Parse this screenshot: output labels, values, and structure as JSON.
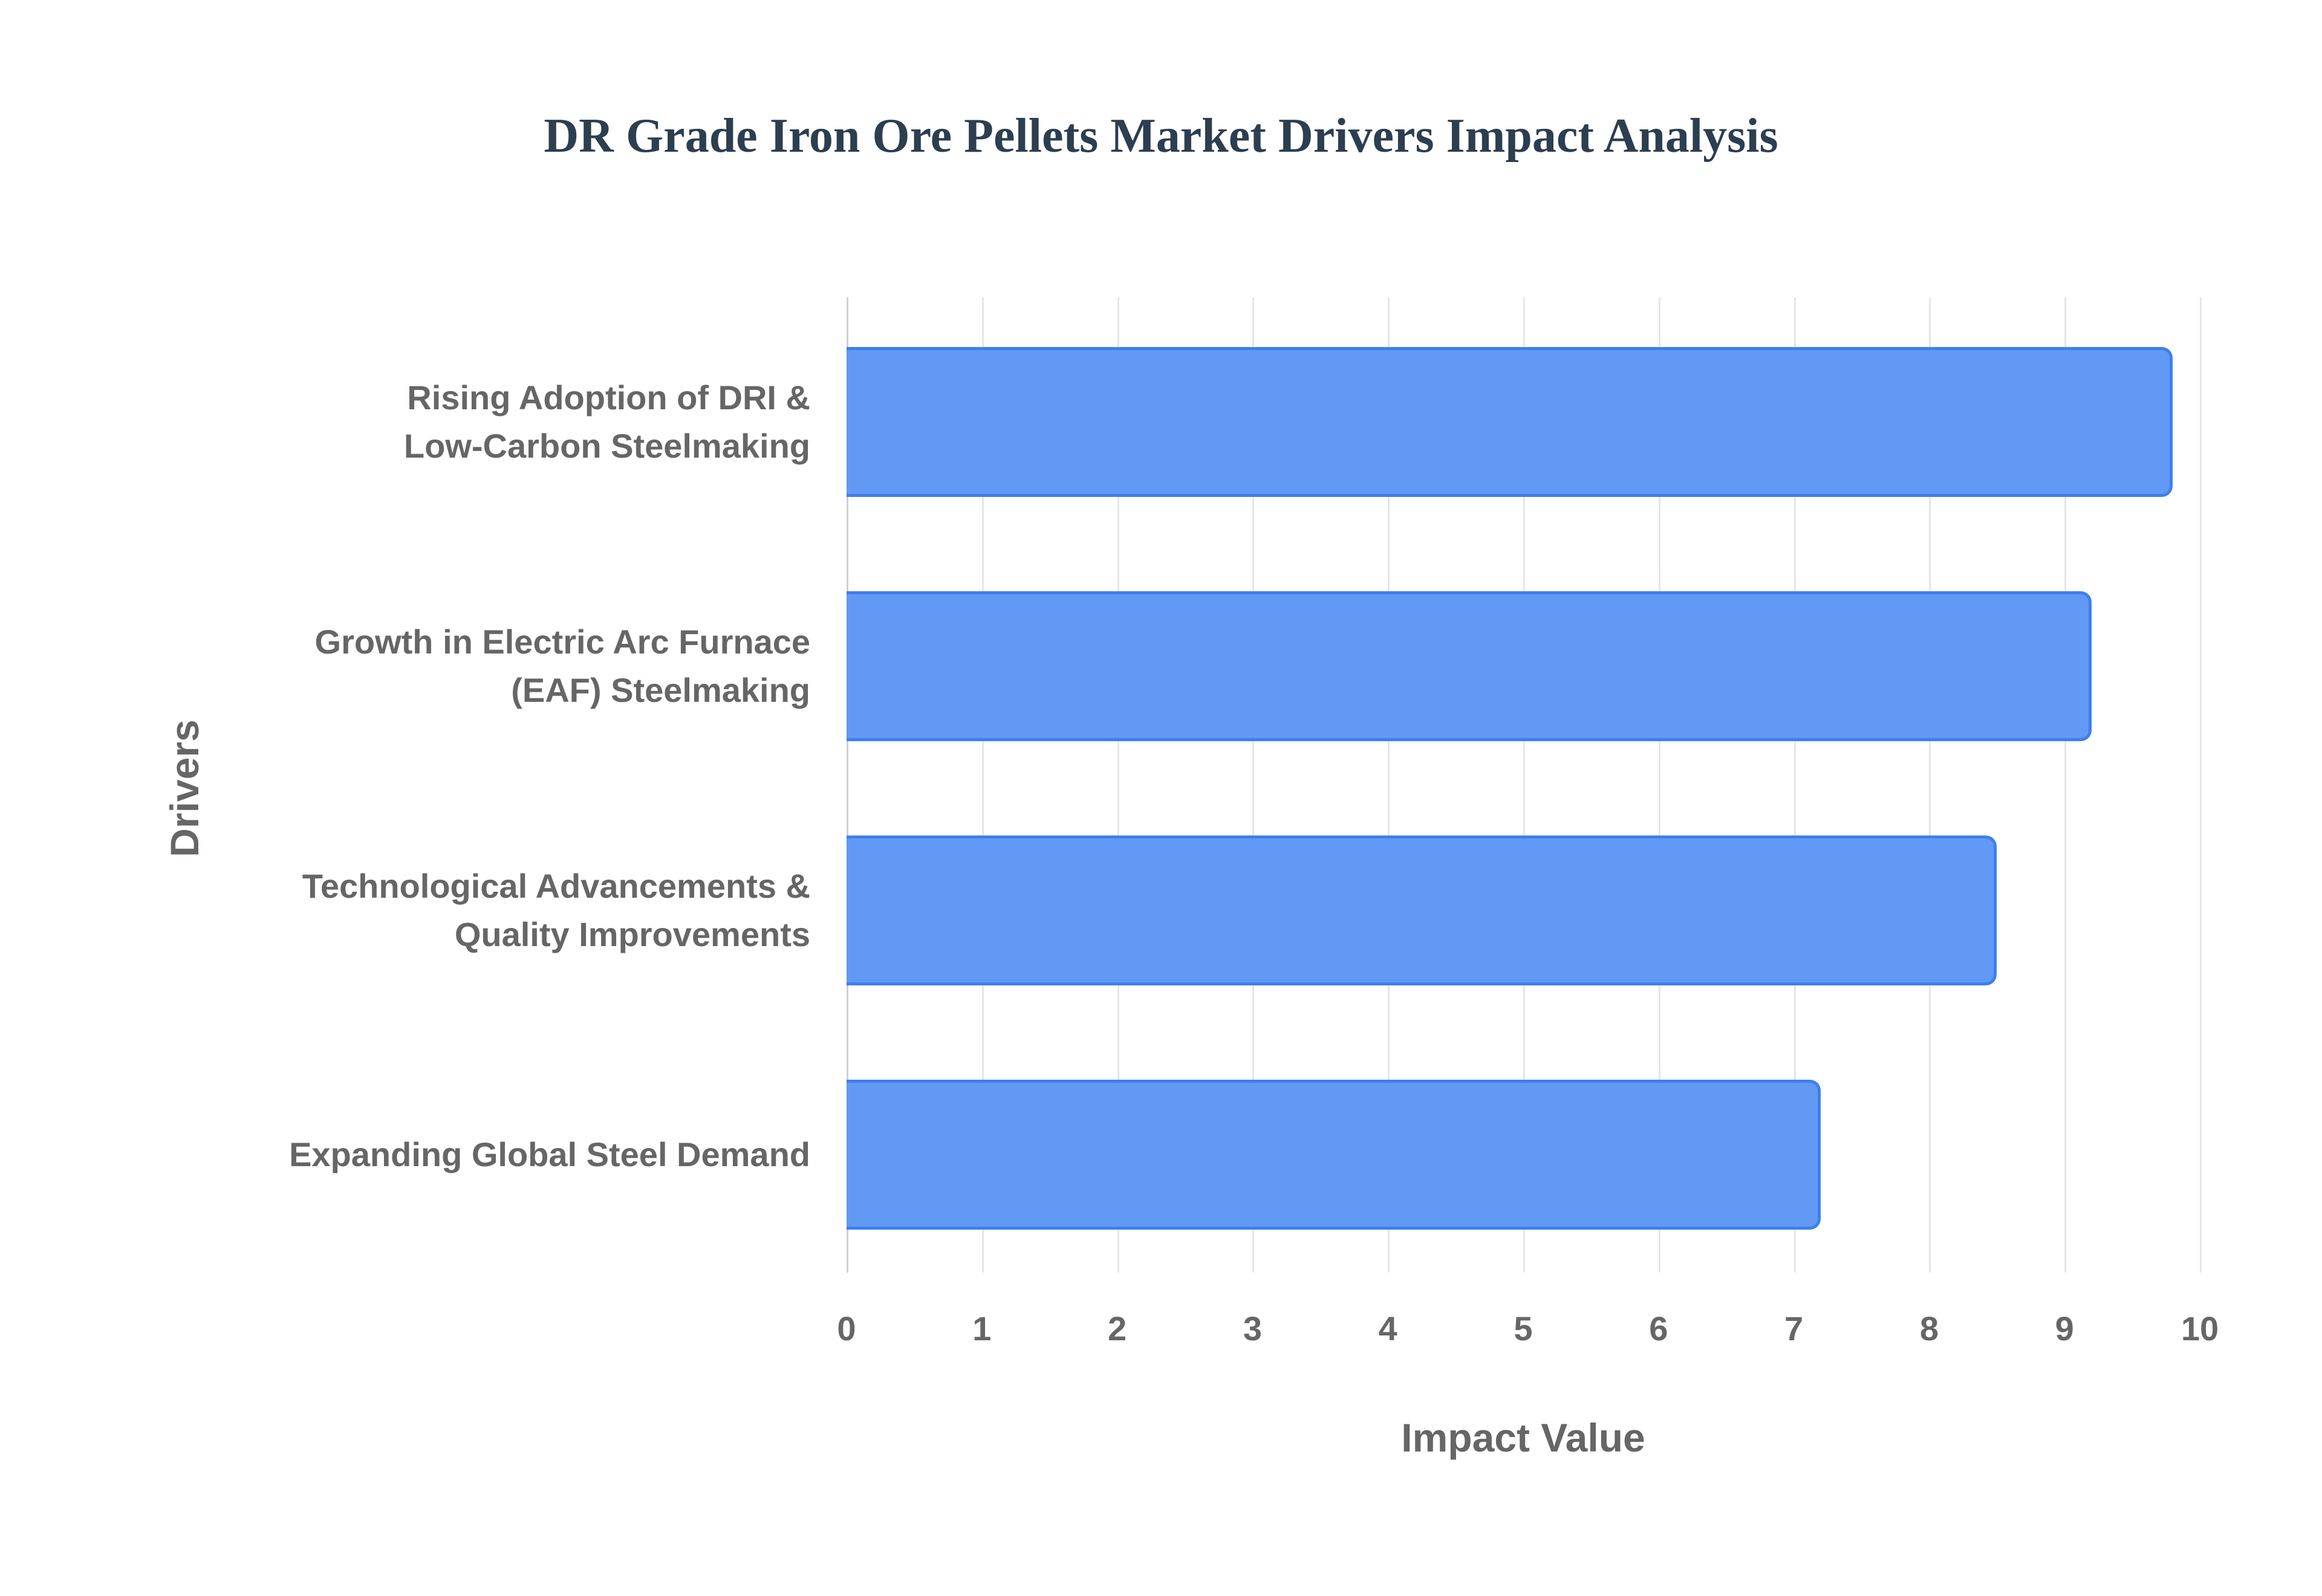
{
  "title": "DR Grade Iron Ore Pellets Market Drivers Impact Analysis",
  "x_axis": {
    "label": "Impact Value",
    "ticks": [
      "0",
      "1",
      "2",
      "3",
      "4",
      "5",
      "6",
      "7",
      "8",
      "9",
      "10"
    ]
  },
  "y_axis": {
    "label": "Drivers"
  },
  "bars": [
    {
      "line1": "Rising Adoption of DRI &",
      "line2": "Low-Carbon Steelmaking",
      "value": 9.8
    },
    {
      "line1": "Growth in Electric Arc Furnace",
      "line2": "(EAF) Steelmaking",
      "value": 9.2
    },
    {
      "line1": "Technological Advancements &",
      "line2": "Quality Improvements",
      "value": 8.5
    },
    {
      "line1": "Expanding Global Steel Demand",
      "line2": "",
      "value": 7.2
    }
  ],
  "colors": {
    "bar_fill": "#6199f5",
    "bar_border": "#3f7fec",
    "title": "#2c3e50",
    "text": "#666666"
  },
  "chart_data": {
    "type": "bar",
    "orientation": "horizontal",
    "title": "DR Grade Iron Ore Pellets Market Drivers Impact Analysis",
    "categories": [
      "Rising Adoption of DRI & Low-Carbon Steelmaking",
      "Growth in Electric Arc Furnace (EAF) Steelmaking",
      "Technological Advancements & Quality Improvements",
      "Expanding Global Steel Demand"
    ],
    "values": [
      9.8,
      9.2,
      8.5,
      7.2
    ],
    "xlabel": "Impact Value",
    "ylabel": "Drivers",
    "xlim": [
      0,
      10
    ],
    "grid": true,
    "legend": "none"
  }
}
